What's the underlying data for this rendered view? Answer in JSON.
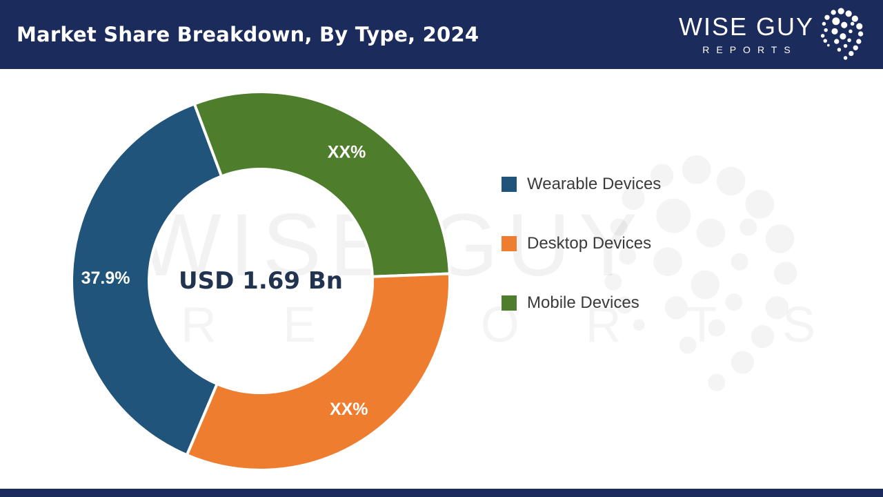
{
  "header": {
    "title": "Market Share Breakdown, By Type, 2024",
    "logo": {
      "line1": "WISE GUY",
      "line2": "REPORTS"
    }
  },
  "watermark": {
    "line1": "WISE GUY",
    "line2": "R E P O R T S"
  },
  "theme": {
    "header_bg": "#1b2b5c",
    "title_color": "#ffffff",
    "center_label_color": "#22334f",
    "legend_text_color": "#3a3a3a",
    "segment_label_color": "#ffffff"
  },
  "chart_data": {
    "type": "pie",
    "donut": true,
    "title": "Market Share Breakdown, By Type, 2024",
    "center_label": "USD 1.69 Bn",
    "legend_position": "right",
    "start_angle_deg": 203,
    "draw_order": [
      0,
      2,
      1
    ],
    "series": [
      {
        "name": "Wearable Devices",
        "value": 37.9,
        "display_label": "37.9%",
        "color": "#20547a"
      },
      {
        "name": "Desktop Devices",
        "value": 32.0,
        "display_label": "XX%",
        "color": "#ee7d30"
      },
      {
        "name": "Mobile Devices",
        "value": 30.1,
        "display_label": "XX%",
        "color": "#4e7d2b"
      }
    ]
  }
}
